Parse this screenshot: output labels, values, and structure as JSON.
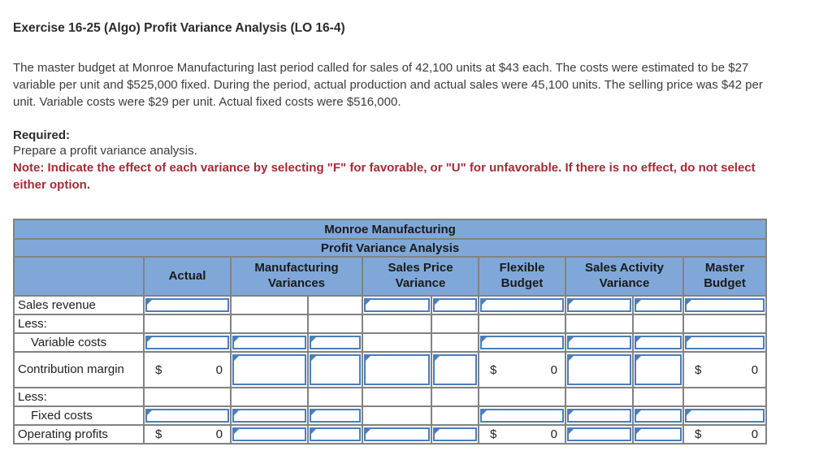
{
  "page": {
    "title": "Exercise 16-25 (Algo) Profit Variance Analysis (LO 16-4)",
    "problem_text": "The master budget at Monroe Manufacturing last period called for sales of 42,100 units at $43 each. The costs were estimated to be $27 variable per unit and $525,000 fixed. During the period, actual production and actual sales were 45,100 units. The selling price was $42 per unit. Variable costs were $29 per unit. Actual fixed costs were $516,000.",
    "required_label": "Required:",
    "required_instruction": "Prepare a profit variance analysis.",
    "note": "Note: Indicate the effect of each variance by selecting \"F\" for favorable, or \"U\" for unfavorable. If there is no effect, do not select either option."
  },
  "table": {
    "title": "Monroe Manufacturing",
    "subtitle": "Profit Variance Analysis",
    "columns": [
      "Actual",
      "Manufacturing Variances",
      "Sales Price Variance",
      "Flexible Budget",
      "Sales Activity Variance",
      "Master Budget"
    ],
    "value_display": {
      "currency": "$",
      "amount": "0"
    },
    "rows": [
      {
        "label": "Sales revenue",
        "indent": false,
        "tall": false,
        "underline": "none",
        "cells": [
          "in",
          "x",
          "x",
          "in",
          "sel",
          "in",
          "in",
          "sel",
          "in"
        ]
      },
      {
        "label": "Less:",
        "indent": false,
        "tall": false,
        "underline": "none",
        "cells": [
          "x",
          "x",
          "x",
          "x",
          "x",
          "x",
          "x",
          "x",
          "x"
        ]
      },
      {
        "label": "Variable costs",
        "indent": true,
        "tall": false,
        "underline": "single",
        "cells": [
          "in",
          "in",
          "sel",
          "x",
          "x",
          "in",
          "in",
          "sel",
          "in"
        ]
      },
      {
        "label": "Contribution margin",
        "indent": false,
        "tall": true,
        "underline": "none",
        "cells": [
          "val",
          "in",
          "sel",
          "in",
          "sel",
          "val",
          "in",
          "sel",
          "val"
        ]
      },
      {
        "label": "Less:",
        "indent": false,
        "tall": false,
        "underline": "none",
        "cells": [
          "x",
          "x",
          "x",
          "x",
          "x",
          "x",
          "x",
          "x",
          "x"
        ]
      },
      {
        "label": "Fixed costs",
        "indent": true,
        "tall": false,
        "underline": "single",
        "cells": [
          "in",
          "in",
          "sel",
          "x",
          "x",
          "in",
          "in",
          "sel",
          "in"
        ]
      },
      {
        "label": "Operating profits",
        "indent": false,
        "tall": false,
        "underline": "double",
        "cells": [
          "val",
          "in",
          "sel",
          "in",
          "sel",
          "val",
          "in",
          "sel",
          "val"
        ]
      }
    ]
  },
  "colors": {
    "header_fill": "#7FA8D9",
    "grid_border": "#828282",
    "input_border": "#4A7EBB",
    "note_red": "#A42B35",
    "underline_black": "#000000"
  }
}
